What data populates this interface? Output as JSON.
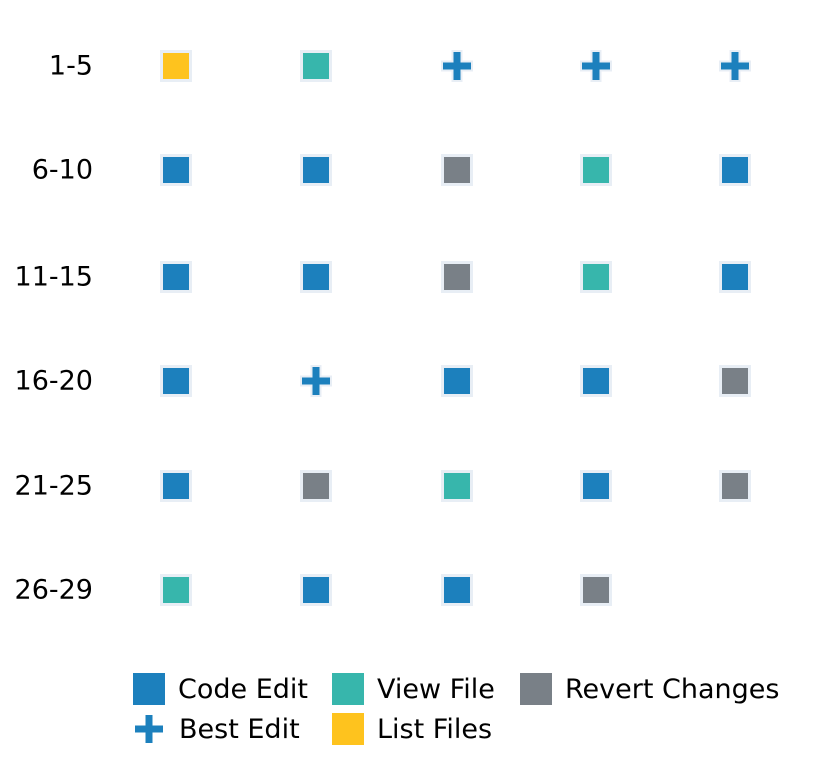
{
  "page": {
    "background_color": "#ffffff",
    "text_color": "#000000"
  },
  "chart_data": {
    "type": "scatter",
    "title": "",
    "xlabel": "",
    "ylabel": "",
    "grid": false,
    "legend_position": "bottom",
    "rows": [
      "1-5",
      "6-10",
      "11-15",
      "16-20",
      "21-25",
      "26-29"
    ],
    "num_columns": 5,
    "cells": [
      [
        "List Files",
        "View File",
        "Best Edit",
        "Best Edit",
        "Best Edit"
      ],
      [
        "Code Edit",
        "Code Edit",
        "Revert Changes",
        "View File",
        "Code Edit"
      ],
      [
        "Code Edit",
        "Code Edit",
        "Revert Changes",
        "View File",
        "Code Edit"
      ],
      [
        "Code Edit",
        "Best Edit",
        "Code Edit",
        "Code Edit",
        "Revert Changes"
      ],
      [
        "Code Edit",
        "Revert Changes",
        "View File",
        "Code Edit",
        "Revert Changes"
      ],
      [
        "View File",
        "Code Edit",
        "Code Edit",
        "Revert Changes",
        null
      ]
    ],
    "legend": [
      {
        "label": "Code Edit",
        "marker": "square",
        "color": "#1c80bd"
      },
      {
        "label": "View File",
        "marker": "square",
        "color": "#37b6ac"
      },
      {
        "label": "Revert Changes",
        "marker": "square",
        "color": "#798087"
      },
      {
        "label": "Best Edit",
        "marker": "plus",
        "color": "#1c80bd"
      },
      {
        "label": "List Files",
        "marker": "square",
        "color": "#fec31e"
      }
    ],
    "marker_edge_color": "#e8eef5"
  }
}
